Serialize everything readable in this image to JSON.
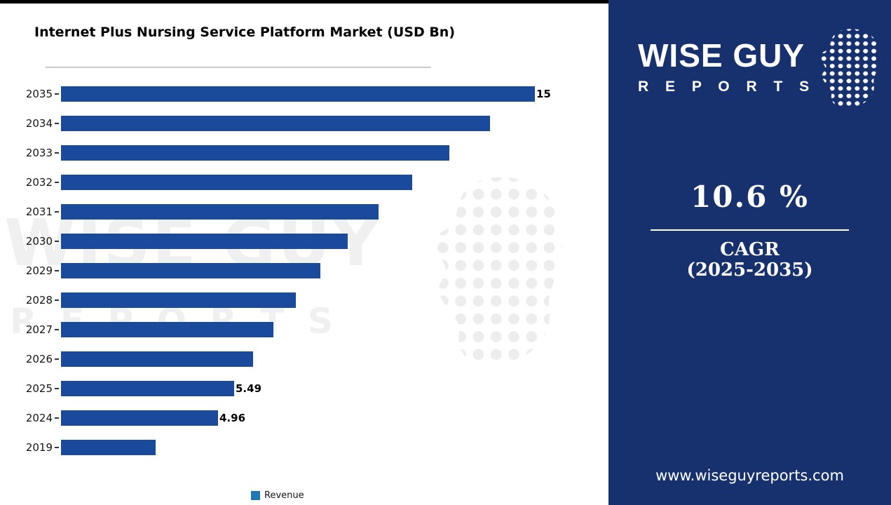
{
  "chart": {
    "title": "Internet Plus Nursing Service Platform Market (USD Bn)",
    "legend_label": "Revenue"
  },
  "chart_data": {
    "type": "bar",
    "orientation": "horizontal",
    "title": "Internet Plus Nursing Service Platform Market (USD Bn)",
    "xlabel": "",
    "ylabel": "",
    "xlim": [
      0,
      16
    ],
    "grid": false,
    "legend": [
      "Revenue"
    ],
    "legend_position": "lower center",
    "categories": [
      "2035",
      "2034",
      "2033",
      "2032",
      "2031",
      "2030",
      "2029",
      "2028",
      "2027",
      "2026",
      "2025",
      "2024",
      "2019"
    ],
    "values": [
      15,
      13.59,
      12.29,
      11.11,
      10.05,
      9.08,
      8.21,
      7.43,
      6.72,
      6.07,
      5.49,
      4.96,
      3.0
    ],
    "labels": [
      "15",
      "",
      "",
      "",
      "",
      "",
      "",
      "",
      "",
      "",
      "5.49",
      "4.96",
      ""
    ]
  },
  "panel": {
    "logo_line1": "WISE GUY",
    "logo_line2": "R E P O R T S",
    "cagr_value": "10.6 %",
    "cagr_label": "CAGR",
    "cagr_period": "(2025-2035)",
    "website": "www.wiseguyreports.com"
  },
  "watermark": {
    "line1": "WISE GUY",
    "line2": "R E P O R T S"
  },
  "icons": {
    "logo_head": "dotted-head-profile-icon",
    "watermark_head": "dotted-head-profile-icon"
  },
  "colors": {
    "bar": "#1a4a9c",
    "legend_swatch": "#1f77b4",
    "panel_bg": "#16316d",
    "watermark": "#f0f0f1",
    "divider": "#c9c9c9"
  }
}
